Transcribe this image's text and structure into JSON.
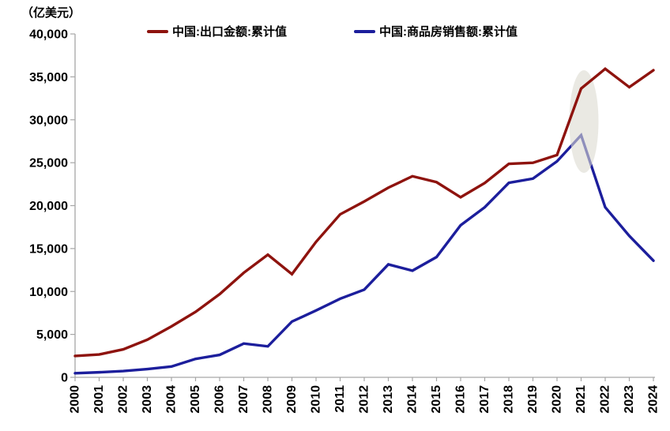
{
  "chart": {
    "unit_label": "（亿美元）"
  },
  "legend": {
    "items": [
      {
        "label": "中国:出口金额:累计值",
        "color": "#8e130e"
      },
      {
        "label": "中国:商品房销售额:累计值",
        "color": "#1c1e9c"
      }
    ]
  },
  "axis": {
    "line_color": "#a6a6a6",
    "label_color": "#000000"
  },
  "highlight": {
    "fill": "#dcdbd1",
    "opacity": 0.6
  },
  "chart_data": {
    "type": "line",
    "title": "",
    "ylabel": "（亿美元）",
    "xlabel": "",
    "ylim": [
      0,
      40000
    ],
    "ytick_step": 5000,
    "grid": false,
    "legend_position": "top",
    "x": [
      2000,
      2001,
      2002,
      2003,
      2004,
      2005,
      2006,
      2007,
      2008,
      2009,
      2010,
      2011,
      2012,
      2013,
      2014,
      2015,
      2016,
      2017,
      2018,
      2019,
      2020,
      2021,
      2022,
      2023,
      2024
    ],
    "series": [
      {
        "name": "中国:出口金额:累计值",
        "color": "#8e130e",
        "values": [
          2492,
          2661,
          3256,
          4382,
          5933,
          7620,
          9690,
          12180,
          14285,
          12016,
          15778,
          18984,
          20487,
          22090,
          23423,
          22735,
          20976,
          22633,
          24874,
          24990,
          25900,
          33640,
          35936,
          33800,
          35772
        ]
      },
      {
        "name": "中国:商品房销售额:累计值",
        "color": "#1c1e9c",
        "values": [
          475,
          587,
          729,
          961,
          1253,
          2146,
          2613,
          3933,
          3607,
          6494,
          7788,
          9152,
          10215,
          13155,
          12425,
          14010,
          17715,
          19808,
          22655,
          23149,
          25161,
          28206,
          19809,
          16472,
          13588
        ]
      }
    ],
    "annotations": [
      {
        "type": "ellipse",
        "x": 2021,
        "description": "grey highlight around 2021 crossover/peak"
      }
    ]
  }
}
